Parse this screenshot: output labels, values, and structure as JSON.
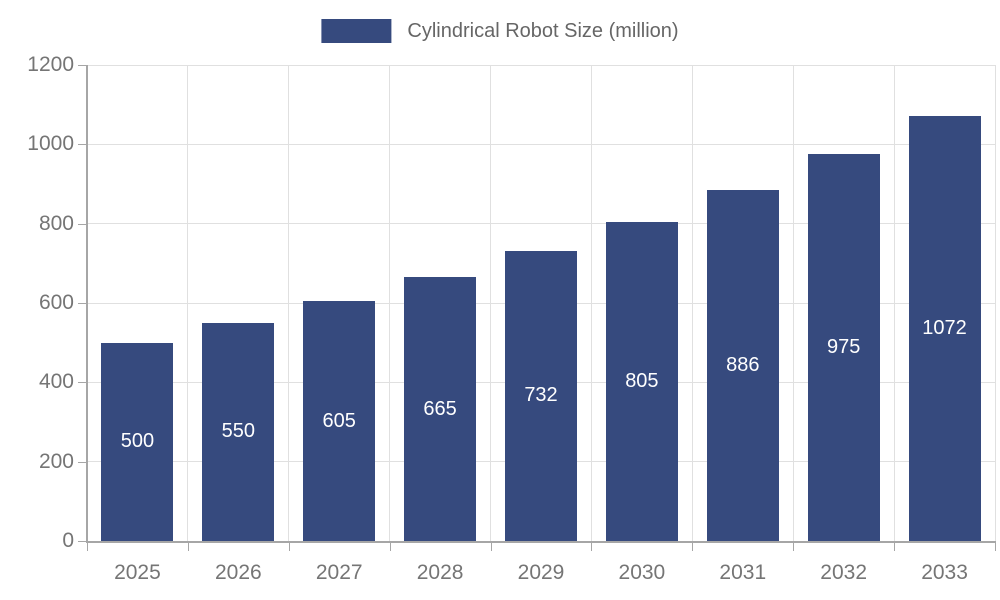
{
  "chart_data": {
    "type": "bar",
    "title": "Cylindrical Robot Size (million)",
    "legend": {
      "label": "Cylindrical Robot Size (million)",
      "position": "top-center"
    },
    "categories": [
      "2025",
      "2026",
      "2027",
      "2028",
      "2029",
      "2030",
      "2031",
      "2032",
      "2033"
    ],
    "values": [
      500,
      550,
      605,
      665,
      732,
      805,
      886,
      975,
      1072
    ],
    "xlabel": "",
    "ylabel": "",
    "ylim": [
      0,
      1200
    ],
    "ytick_interval": 200,
    "grid": true,
    "value_labels": "inside-center"
  },
  "colors": {
    "bar": "#364A7E",
    "grid_line": "#E0E0E0",
    "axis_line": "#A6A6A6",
    "tick_label": "#757575",
    "legend_text": "#666666",
    "value_label": "#FFFFFF",
    "background": "#FFFFFF"
  }
}
